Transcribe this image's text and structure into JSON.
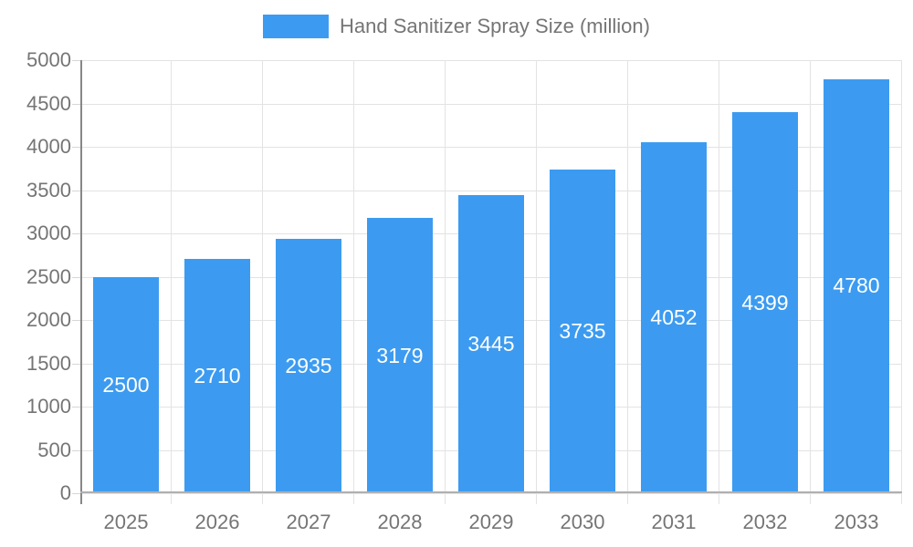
{
  "chart_data": {
    "type": "bar",
    "title": "Hand Sanitizer Spray Size (million)",
    "legend": [
      "Hand Sanitizer Spray Size (million)"
    ],
    "legend_position": "top",
    "categories": [
      "2025",
      "2026",
      "2027",
      "2028",
      "2029",
      "2030",
      "2031",
      "2032",
      "2033"
    ],
    "series": [
      {
        "name": "Hand Sanitizer Spray Size (million)",
        "values": [
          2500,
          2710,
          2935,
          3179,
          3445,
          3735,
          4052,
          4399,
          4780
        ]
      }
    ],
    "xlabel": "",
    "ylabel": "",
    "ylim": [
      0,
      5000
    ],
    "ytick_interval": 500,
    "yticks": [
      0,
      500,
      1000,
      1500,
      2000,
      2500,
      3000,
      3500,
      4000,
      4500,
      5000
    ],
    "grid": true,
    "bar_value_labels_visible": true,
    "colors": {
      "bar": "#3C9BF0",
      "bar_label": "#FFFFFF",
      "axis_text": "#757575",
      "gridline": "#E3E3E3",
      "x_axis_line": "#B0B0B0",
      "y_axis_line": "#878787",
      "tick": "#D6D6D6",
      "background": "#FFFFFF"
    }
  }
}
